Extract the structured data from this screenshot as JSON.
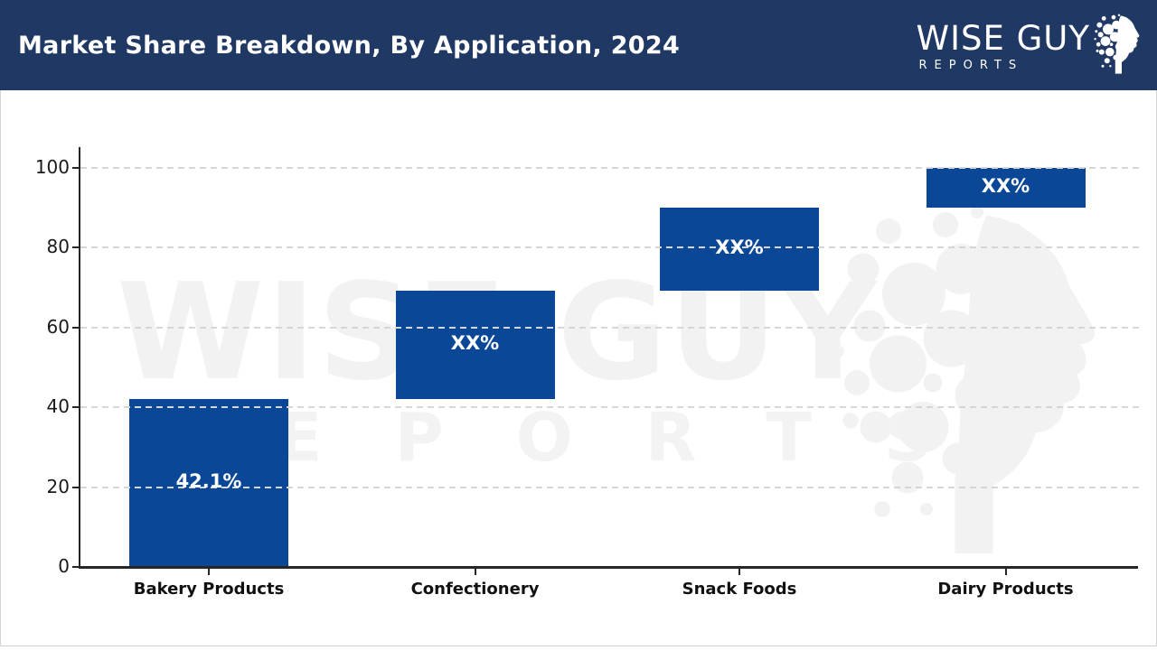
{
  "header": {
    "title": "Market Share Breakdown, By Application, 2024",
    "bg_color": "#1f3864",
    "logo": {
      "line1": "WISE GUY",
      "line2": "REPORTS"
    }
  },
  "watermark": {
    "line1": "WISE GUY",
    "line2": "REPORTS"
  },
  "chart_data": {
    "type": "bar",
    "subtype": "floating-waterfall",
    "title": "Market Share Breakdown, By Application, 2024",
    "categories": [
      "Bakery Products",
      "Confectionery",
      "Snack Foods",
      "Dairy Products"
    ],
    "segments": [
      {
        "category": "Bakery Products",
        "start": 0,
        "end": 42.1,
        "label": "42.1%"
      },
      {
        "category": "Confectionery",
        "start": 42.1,
        "end": 69.2,
        "label": "XX%"
      },
      {
        "category": "Snack Foods",
        "start": 69.2,
        "end": 90,
        "label": "XX%"
      },
      {
        "category": "Dairy Products",
        "start": 90,
        "end": 100,
        "label": "XX%"
      }
    ],
    "y_ticks": [
      0,
      20,
      40,
      60,
      80,
      100
    ],
    "ylim": [
      0,
      105
    ],
    "xlabel": "",
    "ylabel": "",
    "legend": "none",
    "grid": "horizontal-dashed",
    "bar_color": "#0a4796",
    "bar_label_color": "#ffffff",
    "grid_color": "#d6d6d6",
    "axis_color": "#262626"
  }
}
